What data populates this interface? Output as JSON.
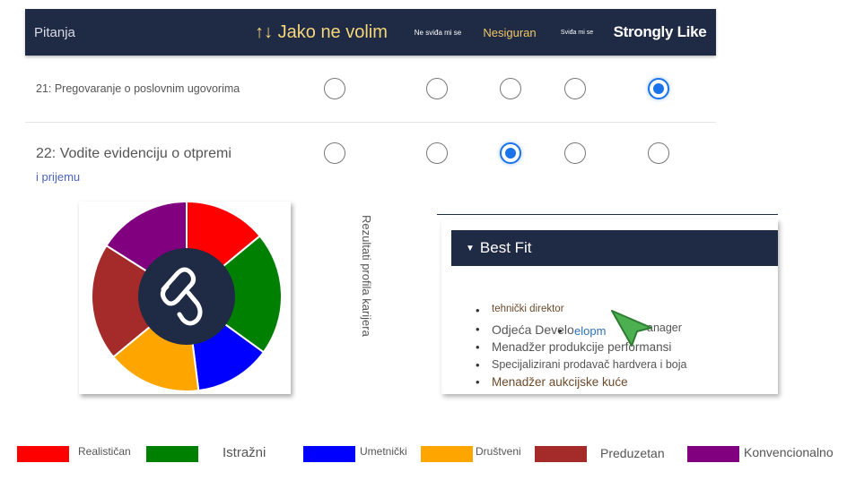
{
  "header": {
    "questions_label": "Pitanja",
    "col1": "↑↓ Jako ne volim",
    "col2": "Ne sviđa mi se",
    "col3": "Nesiguran",
    "col4": "Sviđa mi se",
    "col5": "Strongly Like"
  },
  "questions": [
    {
      "label": "21: Pregovaranje o poslovnim ugovorima",
      "selected_index": 4
    },
    {
      "label": "22: Vodite evidenciju o otpremi",
      "label_continued": "i prijemu",
      "selected_index": 2
    }
  ],
  "chart_data": {
    "type": "pie",
    "categories": [
      "Realističan",
      "Istražni",
      "Umetnički",
      "Društveni",
      "Preduzetan",
      "Konvencionalno"
    ],
    "values": [
      14,
      21,
      13,
      16,
      20,
      16
    ],
    "colors": [
      "#ff0000",
      "#008000",
      "#0000ff",
      "#ffa500",
      "#a52a2a",
      "#800080"
    ],
    "center_icon": "link-hook-icon"
  },
  "side_caption": "Rezultati profila karijera",
  "best_fit": {
    "title": "Best Fit",
    "items": [
      "tehnički direktor",
      "Odjeća Develo",
      "elopm",
      "anager",
      "Menadžer produkcije performansi",
      "Specijalizirani prodavač hardvera i boja",
      "Menadžer aukcijske kuće"
    ]
  },
  "legend": [
    {
      "label": "Realističan",
      "color": "#ff0000"
    },
    {
      "label": "Istražni",
      "color": "#008000"
    },
    {
      "label": "Umetnički",
      "color": "#0000ff"
    },
    {
      "label": "Društveni",
      "color": "#ffa500"
    },
    {
      "label": "Preduzetan",
      "color": "#a52a2a"
    },
    {
      "label": "Konvencionalno",
      "color": "#800080"
    }
  ]
}
